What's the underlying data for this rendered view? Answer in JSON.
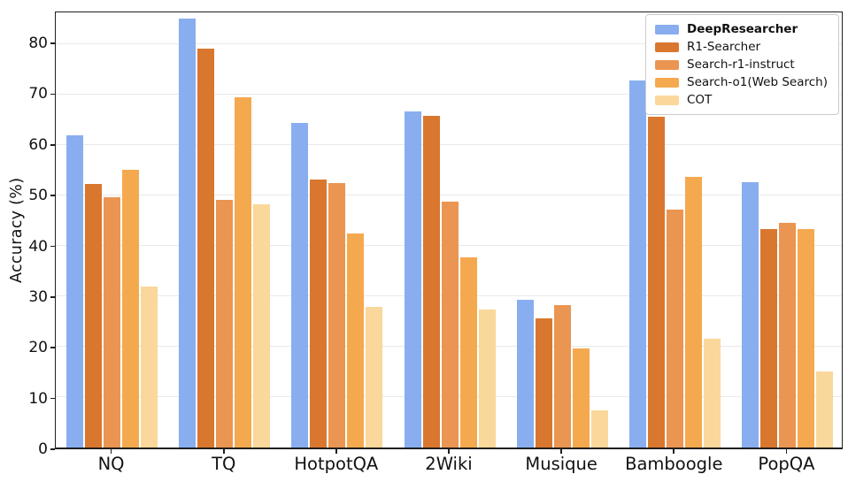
{
  "chart_data": {
    "type": "bar",
    "title": "",
    "xlabel": "",
    "ylabel": "Accuracy (%)",
    "categories": [
      "NQ",
      "TQ",
      "HotpotQA",
      "2Wiki",
      "Musique",
      "Bamboogle",
      "PopQA"
    ],
    "series": [
      {
        "name": "DeepResearcher",
        "color": "#88AEF0",
        "values": [
          61.9,
          85.0,
          64.3,
          66.6,
          29.3,
          72.8,
          52.7
        ]
      },
      {
        "name": "R1-Searcher",
        "color": "#D9772E",
        "values": [
          52.3,
          79.1,
          53.1,
          65.8,
          25.6,
          65.6,
          43.4
        ]
      },
      {
        "name": "Search-r1-instruct",
        "color": "#EB9552",
        "values": [
          49.6,
          49.2,
          52.5,
          48.8,
          28.3,
          47.2,
          44.5
        ]
      },
      {
        "name": "Search-o1(Web Search)",
        "color": "#F5A94F",
        "values": [
          55.1,
          69.5,
          42.4,
          37.7,
          19.6,
          53.6,
          43.4
        ]
      },
      {
        "name": "COT",
        "color": "#FAD79B",
        "values": [
          32.0,
          48.2,
          27.9,
          27.3,
          7.3,
          21.5,
          15.0
        ]
      }
    ],
    "ylim": [
      0,
      86.3
    ],
    "yticks": [
      0,
      10,
      20,
      30,
      40,
      50,
      60,
      70,
      80
    ],
    "grid": "horizontal",
    "legend_position": "top-right",
    "legend_bold_first": true,
    "grid_color": "#e9e9e9",
    "axis_color": "#1f1f1f",
    "background_color": "#ffffff"
  }
}
